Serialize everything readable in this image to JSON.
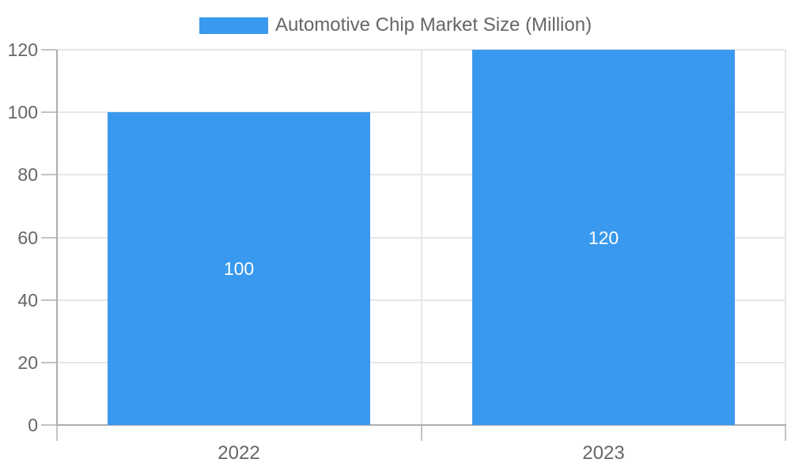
{
  "legend": {
    "label": "Automotive Chip Market Size (Million)",
    "swatch_color": "#3999ee"
  },
  "chart_data": {
    "type": "bar",
    "categories": [
      "2022",
      "2023"
    ],
    "series": [
      {
        "name": "Automotive Chip Market Size (Million)",
        "values": [
          100,
          120
        ],
        "data_labels": [
          "100",
          "120"
        ],
        "color": "#3999ee"
      }
    ],
    "title": "",
    "xlabel": "",
    "ylabel": "",
    "ylim": [
      0,
      120
    ],
    "yticks": [
      0,
      20,
      40,
      60,
      80,
      100,
      120
    ],
    "ytick_labels": [
      "0",
      "20",
      "40",
      "60",
      "80",
      "100",
      "120"
    ],
    "grid": true,
    "legend_position": "top",
    "data_label_color": "#ffffff",
    "colors": {
      "gridline": "#e6e6e6",
      "axis_line": "#aeaeae",
      "tick_mark": "#c4c4c4",
      "axis_text": "#666666"
    }
  }
}
